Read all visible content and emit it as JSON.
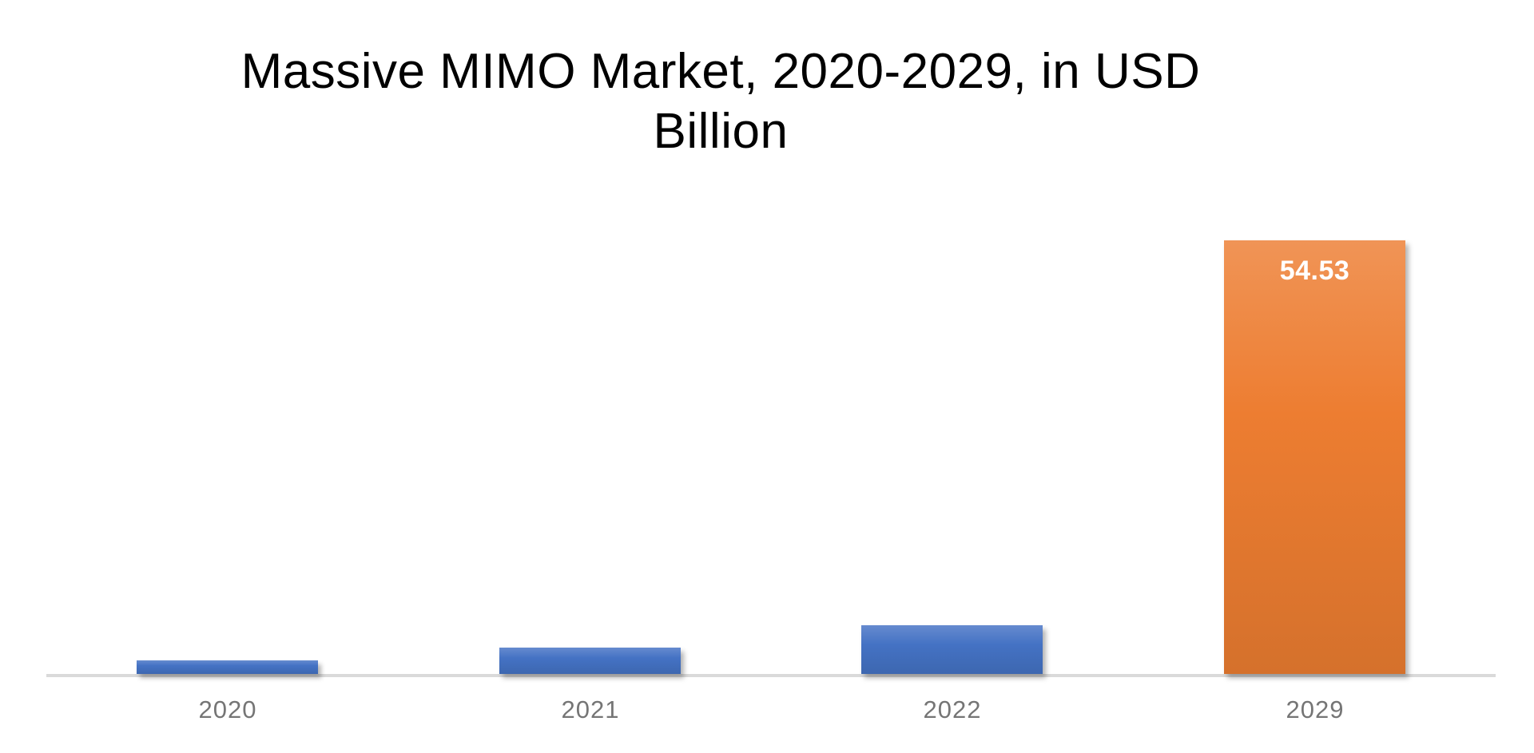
{
  "chart_data": {
    "type": "bar",
    "title": "Massive MIMO Market, 2020-2029, in USD Billion",
    "title_lines": [
      "Massive MIMO Market, 2020-2029, in USD",
      "Billion"
    ],
    "categories": [
      "2020",
      "2021",
      "2022",
      "2029"
    ],
    "values": [
      1.75,
      3.35,
      6.1,
      54.53
    ],
    "data_labels": [
      "",
      "",
      "",
      "54.53"
    ],
    "bar_colors": [
      "#4472C4",
      "#4472C4",
      "#4472C4",
      "#ED7D31"
    ],
    "ylim": [
      0,
      54.53
    ],
    "grid": false,
    "legend": false,
    "xlabel": "",
    "ylabel": "",
    "colors": {
      "title": "#000000",
      "tick_label": "#757575",
      "axis_line": "#DADADA",
      "data_label": "#FFFFFF",
      "background": "#FFFFFF"
    }
  }
}
